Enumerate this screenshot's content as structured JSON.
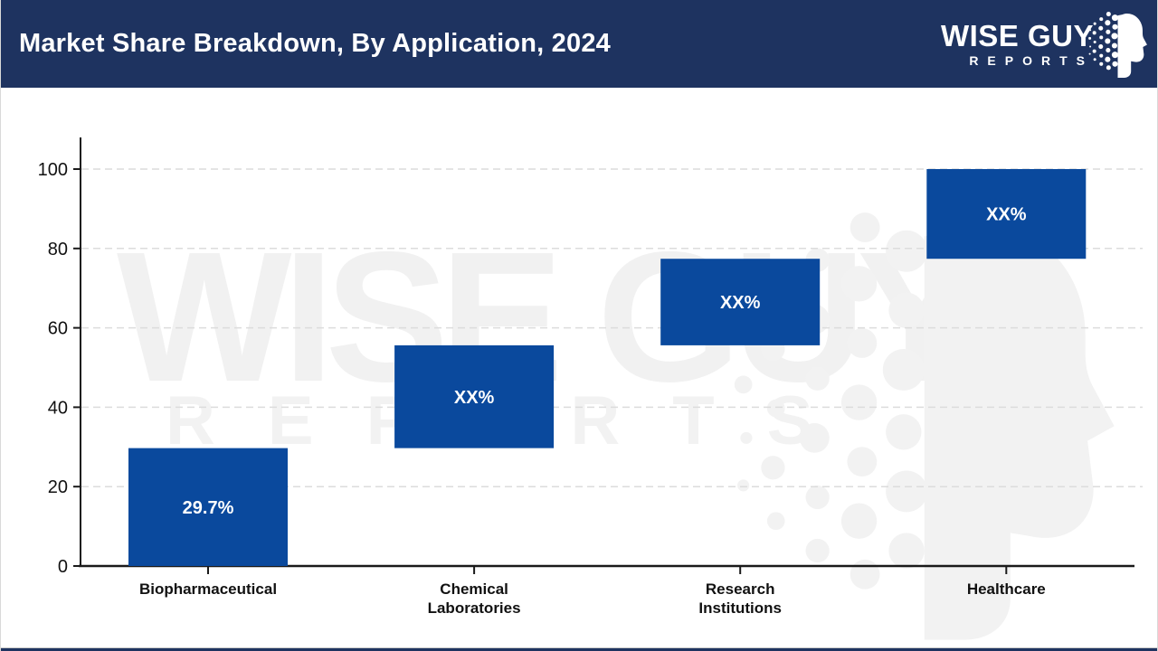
{
  "header": {
    "title": "Market Share Breakdown, By Application, 2024"
  },
  "logo": {
    "brand_top": "WISE GUY",
    "brand_bottom": "REPORTS"
  },
  "watermark": {
    "line1": "WISE GUY",
    "line2": "REPORTS"
  },
  "colors": {
    "header_bg": "#1e3360",
    "bar": "#0a499d",
    "grid": "#dcdcdc",
    "axis": "#1a1a1a",
    "tick_label": "#111111",
    "bar_label": "#ffffff",
    "watermark": "#f2f2f2"
  },
  "chart_data": {
    "type": "bar",
    "variant": "waterfall",
    "title": "Market Share Breakdown, By Application, 2024",
    "categories": [
      "Biopharmaceutical",
      "Chemical Laboratories",
      "Research Institutions",
      "Healthcare"
    ],
    "category_label_lines": [
      [
        "Biopharmaceutical"
      ],
      [
        "Chemical",
        "Laboratories"
      ],
      [
        "Research",
        "Institutions"
      ],
      [
        "Healthcare"
      ]
    ],
    "segments": [
      {
        "category": "Biopharmaceutical",
        "start": 0,
        "end": 29.7,
        "label": "29.7%"
      },
      {
        "category": "Chemical Laboratories",
        "start": 29.7,
        "end": 55.6,
        "label": "XX%"
      },
      {
        "category": "Research Institutions",
        "start": 55.6,
        "end": 77.4,
        "label": "XX%"
      },
      {
        "category": "Healthcare",
        "start": 77.4,
        "end": 100,
        "label": "XX%"
      }
    ],
    "xlabel": "",
    "ylabel": "",
    "ylim": [
      0,
      100
    ],
    "yticks": [
      0,
      20,
      40,
      60,
      80,
      100
    ],
    "grid": "horizontal-dashed",
    "legend": "none",
    "bar_color": "#0a499d",
    "bar_label_color": "#ffffff"
  }
}
